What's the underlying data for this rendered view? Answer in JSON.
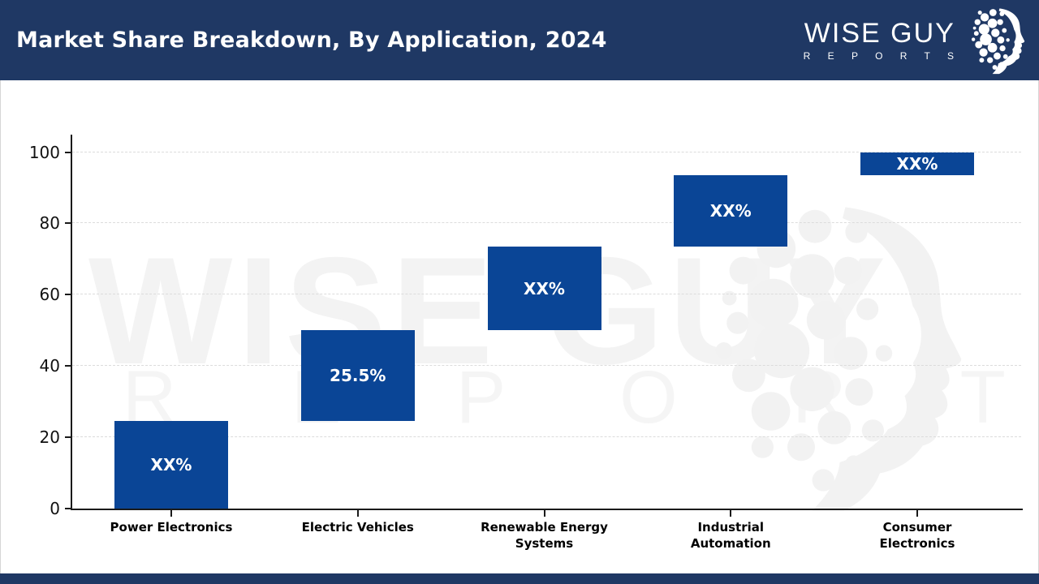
{
  "header": {
    "title": "Market Share Breakdown, By Application, 2024",
    "logo": {
      "line1": "WISE GUY",
      "line2": "R E P O R T S"
    }
  },
  "watermark": {
    "line1": "WISE GUY",
    "line2": "R E P O R T S"
  },
  "colors": {
    "header_bg": "#1f3864",
    "footer_bg": "#1f3864",
    "bar": "#0a4596",
    "gridline": "#dcdcdc",
    "axis": "#1a1a1a",
    "bar_label": "#ffffff",
    "watermark": "#f3f3f3"
  },
  "chart_data": {
    "type": "bar",
    "subtype": "waterfall",
    "title": "Market Share Breakdown, By Application, 2024",
    "categories": [
      "Power Electronics",
      "Electric Vehicles",
      "Renewable Energy Systems",
      "Industrial Automation",
      "Consumer Electronics"
    ],
    "category_label_lines": [
      "Power Electronics",
      "Electric Vehicles",
      "Renewable Energy\nSystems",
      "Industrial\nAutomation",
      "Consumer\nElectronics"
    ],
    "bars": [
      {
        "category": "Power Electronics",
        "start": 0,
        "end": 24.5,
        "value": 24.5,
        "label": "XX%"
      },
      {
        "category": "Electric Vehicles",
        "start": 24.5,
        "end": 50,
        "value": 25.5,
        "label": "25.5%"
      },
      {
        "category": "Renewable Energy Systems",
        "start": 50,
        "end": 73.5,
        "value": 23.5,
        "label": "XX%"
      },
      {
        "category": "Industrial Automation",
        "start": 73.5,
        "end": 93.5,
        "value": 20,
        "label": "XX%"
      },
      {
        "category": "Consumer Electronics",
        "start": 93.5,
        "end": 100,
        "value": 6.5,
        "label": "XX%"
      }
    ],
    "xlabel": "",
    "ylabel": "",
    "ylim": [
      0,
      100
    ],
    "yticks": [
      0,
      20,
      40,
      60,
      80,
      100
    ],
    "grid": {
      "axis": "y",
      "style": "dashed"
    },
    "legend": "none"
  }
}
